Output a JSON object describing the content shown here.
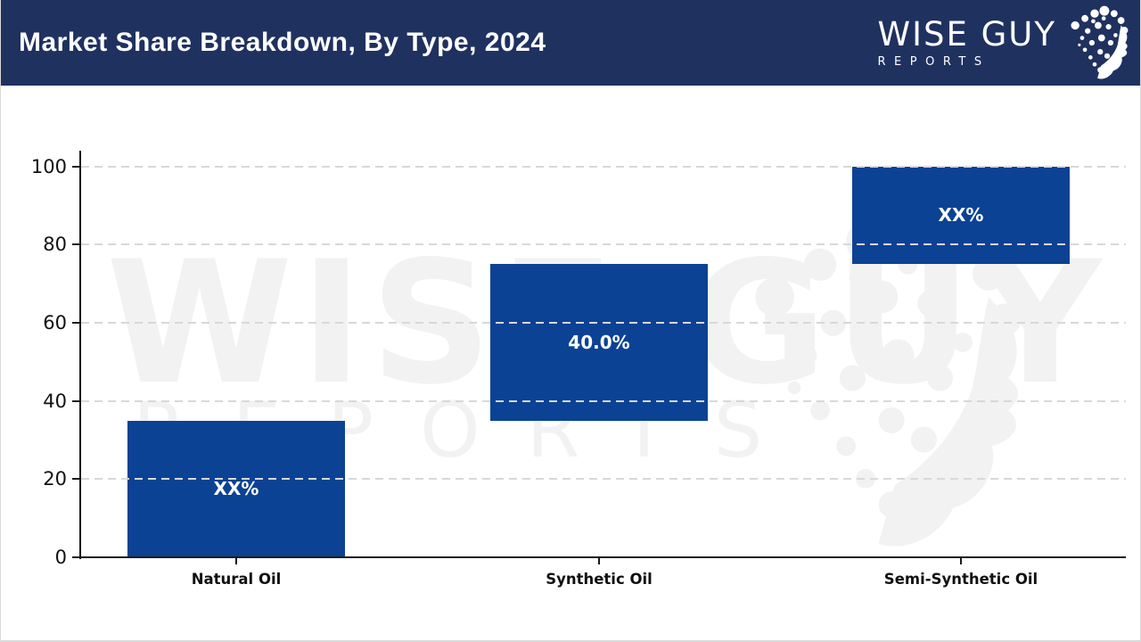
{
  "header": {
    "title": "Market Share Breakdown, By Type, 2024",
    "bg_color": "#1f315f",
    "logo": {
      "line1": "WISE GUY",
      "line2": "REPORTS"
    }
  },
  "watermark": {
    "line1": "WISE GUY",
    "line2": "REPORTS"
  },
  "chart_data": {
    "type": "bar",
    "variant": "stacked-range-segments",
    "title": "Market Share Breakdown, By Type, 2024",
    "categories": [
      "Natural Oil",
      "Synthetic Oil",
      "Semi-Synthetic Oil"
    ],
    "segments": [
      {
        "category": "Natural Oil",
        "start": 0,
        "end": 35,
        "label": "XX%"
      },
      {
        "category": "Synthetic Oil",
        "start": 35,
        "end": 75,
        "label": "40.0%"
      },
      {
        "category": "Semi-Synthetic Oil",
        "start": 75,
        "end": 100,
        "label": "XX%"
      }
    ],
    "xlabel": "",
    "ylabel": "",
    "yticks": [
      0,
      20,
      40,
      60,
      80,
      100
    ],
    "ylim": [
      0,
      104
    ],
    "grid": {
      "axis": "y",
      "style": "dashed",
      "color": "#d8d8d8",
      "above_bars": true
    },
    "legend": "none",
    "bar_color": "#0b4294",
    "bar_label_color": "#ffffff",
    "axis_color": "#1a1a1a",
    "tick_label_color": "#111111"
  }
}
